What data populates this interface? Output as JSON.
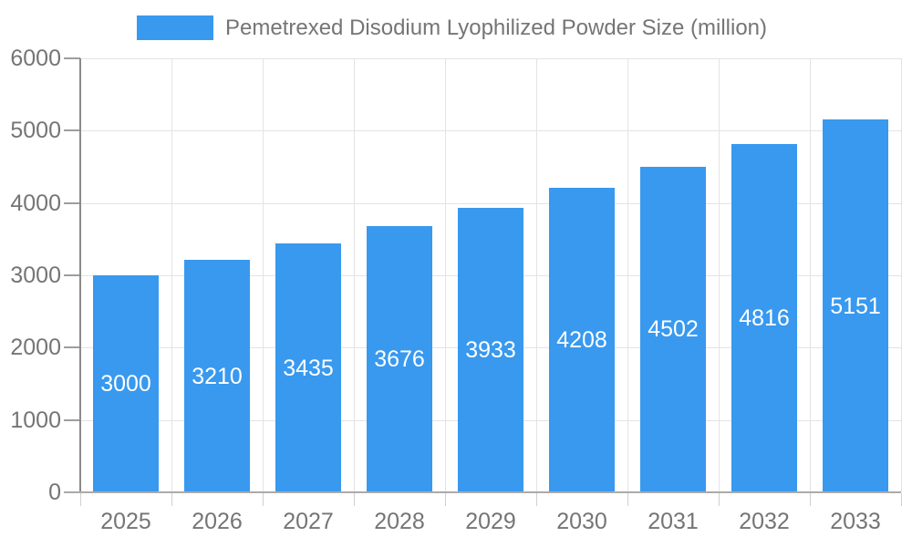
{
  "legend": {
    "label": "Pemetrexed Disodium Lyophilized Powder Size (million)",
    "swatch_color": "#3899EF"
  },
  "chart_data": {
    "type": "bar",
    "title": "Pemetrexed Disodium Lyophilized Powder Size (million)",
    "categories": [
      "2025",
      "2026",
      "2027",
      "2028",
      "2029",
      "2030",
      "2031",
      "2032",
      "2033"
    ],
    "values": [
      3000,
      3210,
      3435,
      3676,
      3933,
      4208,
      4502,
      4816,
      5151
    ],
    "xlabel": "",
    "ylabel": "",
    "ylim": [
      0,
      6000
    ],
    "yticks": [
      0,
      1000,
      2000,
      3000,
      4000,
      5000,
      6000
    ],
    "grid": true,
    "legend_position": "top",
    "bar_color": "#3899EF",
    "bar_label_color": "#ffffff",
    "axis_text_color": "#757575",
    "gridline_color": "#e3e3e3"
  }
}
